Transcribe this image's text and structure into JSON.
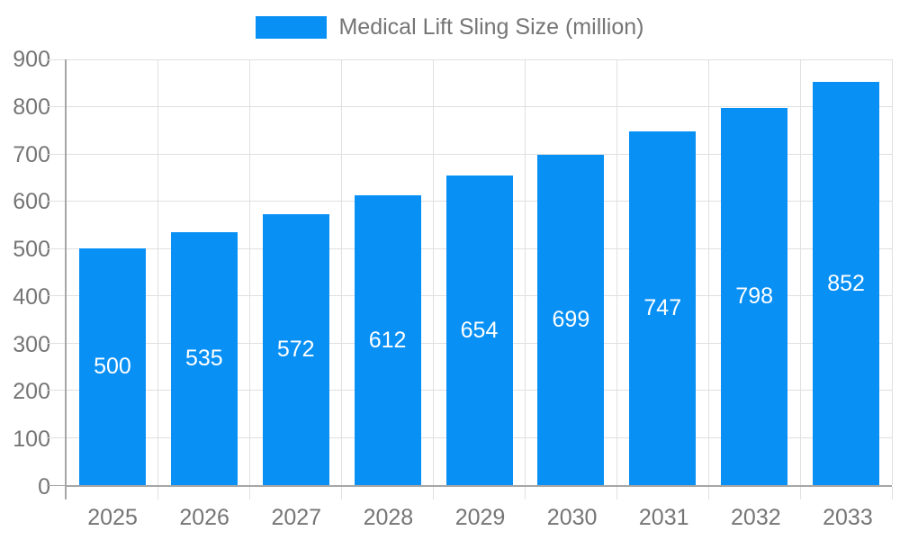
{
  "legend": {
    "label": "Medical Lift Sling Size (million)"
  },
  "colors": {
    "bar": "#0890F5",
    "axis": "#a6a6a6",
    "grid": "#e0e0e0",
    "text": "#757575",
    "bar_label": "#ffffff",
    "background": "#ffffff"
  },
  "chart_data": {
    "type": "bar",
    "title": "Medical Lift Sling Size (million)",
    "series_name": "Medical Lift Sling Size (million)",
    "categories": [
      "2025",
      "2026",
      "2027",
      "2028",
      "2029",
      "2030",
      "2031",
      "2032",
      "2033"
    ],
    "values": [
      500,
      535,
      572,
      612,
      654,
      699,
      747,
      798,
      852
    ],
    "xlabel": "",
    "ylabel": "",
    "ylim": [
      0,
      900
    ],
    "yticks": [
      0,
      100,
      200,
      300,
      400,
      500,
      600,
      700,
      800,
      900
    ],
    "grid": true,
    "vertical_gridlines": true,
    "legend_position": "top-center",
    "bar_value_labels": "inside-middle-white"
  }
}
